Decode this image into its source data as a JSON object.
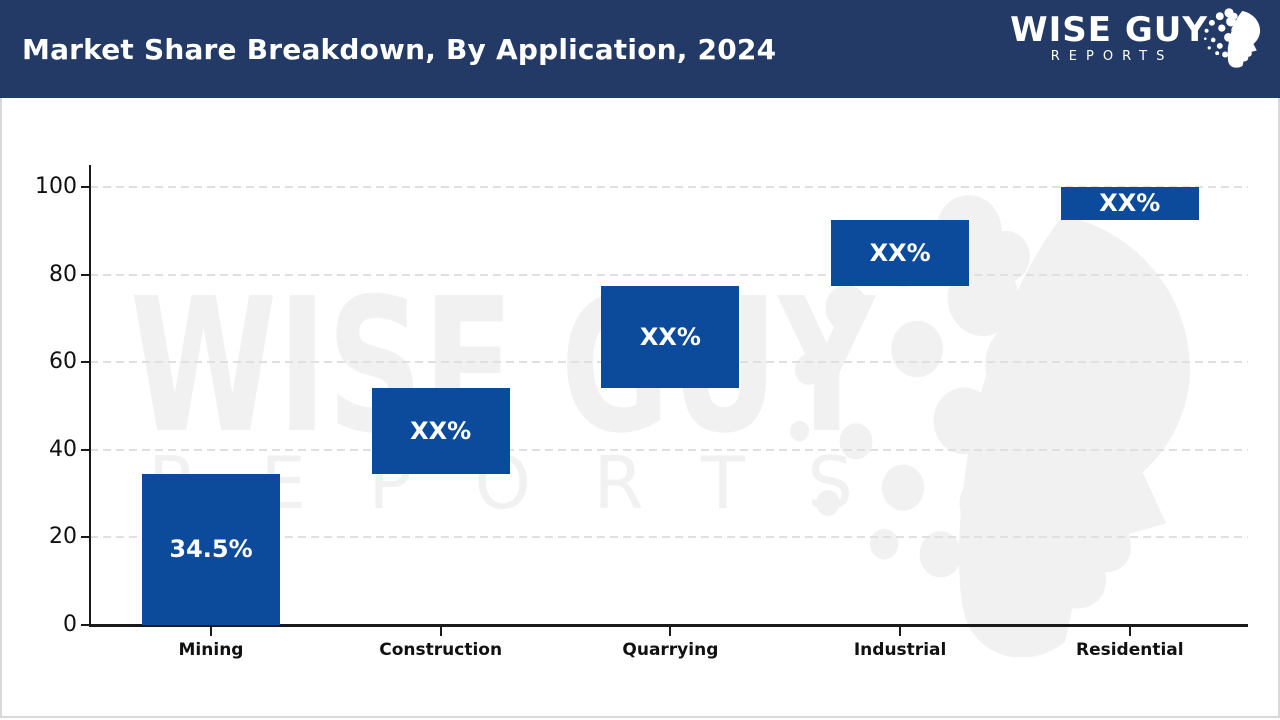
{
  "header": {
    "title": "Market Share Breakdown, By Application, 2024",
    "bg_color": "#223a65",
    "logo": {
      "line1": "WISE GUY",
      "line2": "REPORTS"
    }
  },
  "watermark": {
    "line1": "WISE GUY",
    "line2": "REPORTS"
  },
  "chart_data": {
    "type": "bar",
    "subtype": "waterfall",
    "title": "Market Share Breakdown, By Application, 2024",
    "categories": [
      "Mining",
      "Construction",
      "Quarrying",
      "Industrial",
      "Residential"
    ],
    "segments": [
      {
        "category": "Mining",
        "start": 0,
        "end": 34.5,
        "label": "34.5%"
      },
      {
        "category": "Construction",
        "start": 34.5,
        "end": 54,
        "label": "XX%"
      },
      {
        "category": "Quarrying",
        "start": 54,
        "end": 77.5,
        "label": "XX%"
      },
      {
        "category": "Industrial",
        "start": 77.5,
        "end": 92.5,
        "label": "XX%"
      },
      {
        "category": "Residential",
        "start": 92.5,
        "end": 100,
        "label": "XX%"
      }
    ],
    "yticks": [
      0,
      20,
      40,
      60,
      80,
      100
    ],
    "ylim": [
      0,
      100
    ],
    "xlabel": "",
    "ylabel": "",
    "grid": "horizontal dashed",
    "legend": "none",
    "bar_color": "#0c4a9c",
    "bar_label_color": "#ffffff",
    "axis_color": "#1a1a1a",
    "grid_color": "#e0e0e0"
  }
}
